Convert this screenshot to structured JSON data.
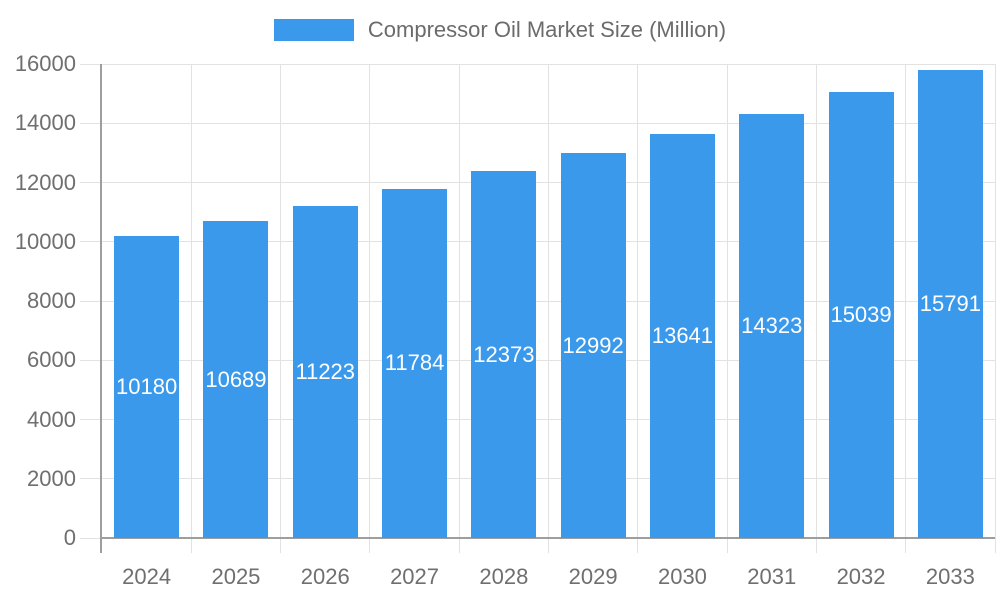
{
  "legend": {
    "label": "Compressor Oil Market Size (Million)"
  },
  "chart_data": {
    "type": "bar",
    "title": "Compressor Oil Market Size (Million)",
    "xlabel": "",
    "ylabel": "",
    "categories": [
      "2024",
      "2025",
      "2026",
      "2027",
      "2028",
      "2029",
      "2030",
      "2031",
      "2032",
      "2033"
    ],
    "values": [
      10180,
      10689,
      11223,
      11784,
      12373,
      12992,
      13641,
      14323,
      15039,
      15791
    ],
    "ylim": [
      0,
      16000
    ],
    "ytick_step": 2000,
    "yticks": [
      0,
      2000,
      4000,
      6000,
      8000,
      10000,
      12000,
      14000,
      16000
    ],
    "grid": true,
    "legend_position": "top-center",
    "value_labels": "inside-middle-white",
    "colors": {
      "bar": "#3b99ec",
      "value_label": "#ffffff",
      "axis_text": "#6f6f6f",
      "legend_text": "#6b6b6b",
      "gridline": "#e2e2e2",
      "axis_line": "#9e9e9e",
      "background": "#ffffff"
    }
  }
}
